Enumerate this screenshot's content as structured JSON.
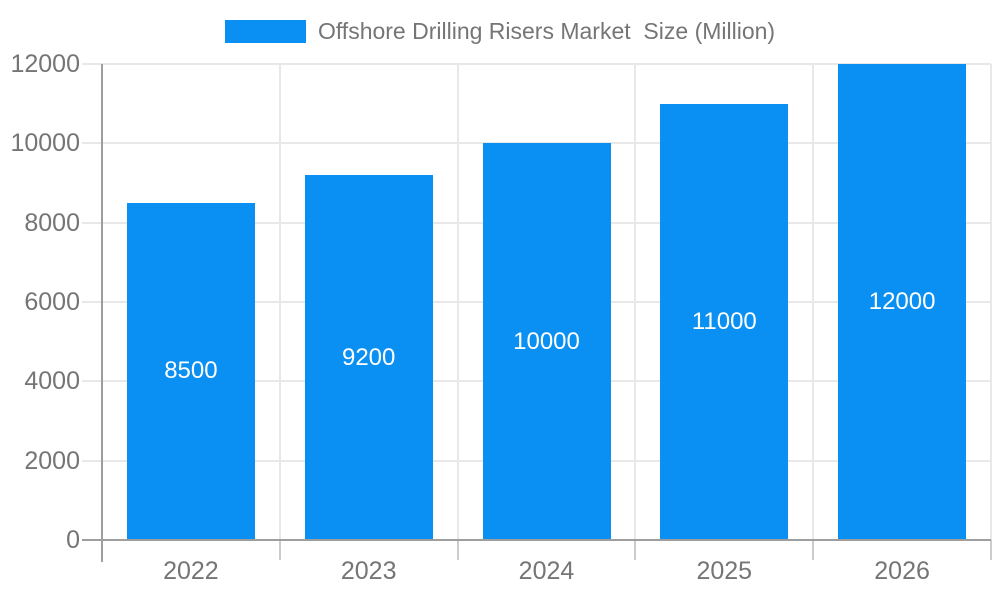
{
  "chart_data": {
    "type": "bar",
    "title": "",
    "legend_label": "Offshore Drilling Risers Market  Size (Million)",
    "legend_position": "top",
    "categories": [
      "2022",
      "2023",
      "2024",
      "2025",
      "2026"
    ],
    "series": [
      {
        "name": "Offshore Drilling Risers Market  Size (Million)",
        "values": [
          8500,
          9200,
          10000,
          11000,
          12000
        ]
      }
    ],
    "data_labels": [
      "8500",
      "9200",
      "10000",
      "11000",
      "12000"
    ],
    "y_ticks": [
      0,
      2000,
      4000,
      6000,
      8000,
      10000,
      12000
    ],
    "y_tick_labels": [
      "0",
      "2000",
      "4000",
      "6000",
      "8000",
      "10000",
      "12000"
    ],
    "ylim": [
      0,
      12000
    ],
    "xlabel": "",
    "ylabel": "",
    "grid": true,
    "colors": {
      "bar": "#0a8ff2",
      "data_label": "#ffffff",
      "axis_line": "#9e9e9e",
      "grid_line": "#e8e8e8",
      "tick_line": "#cccccc",
      "label_text": "#757575",
      "background": "#ffffff"
    }
  }
}
